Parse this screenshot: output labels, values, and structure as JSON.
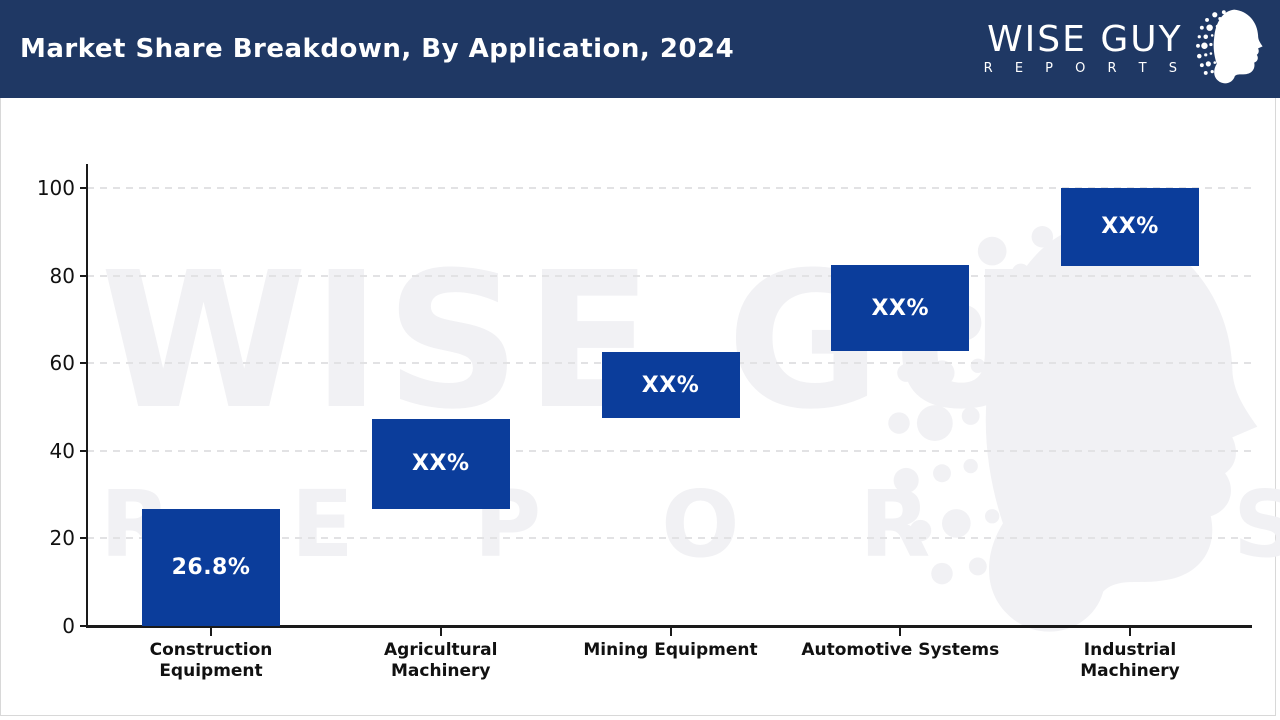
{
  "header": {
    "title": "Market Share Breakdown, By Application, 2024",
    "logo": {
      "line1": "WISE GUY",
      "line2": "R E P O R T S"
    }
  },
  "watermark": {
    "line1": "WISE GUY",
    "line2": "R E P O R T S"
  },
  "colors": {
    "header_bg": "#1f3864",
    "bar": "#0b3d9b",
    "grid": "#e2e2e4",
    "axis": "#1a1a1a",
    "watermark": "#f1f1f4",
    "panel_border": "#d8d8d8",
    "tick_label": "#111111",
    "bar_label": "#ffffff"
  },
  "chart_data": {
    "type": "bar",
    "subtype": "waterfall",
    "title": "Market Share Breakdown, By Application, 2024",
    "xlabel": "",
    "ylabel": "",
    "ylim": [
      0,
      100
    ],
    "yticks": [
      0,
      20,
      40,
      60,
      80,
      100
    ],
    "grid": "horizontal dashed, behind bars",
    "legend": "none",
    "categories": [
      "Construction\nEquipment",
      "Agricultural\nMachinery",
      "Mining Equipment",
      "Automotive Systems",
      "Industrial\nMachinery"
    ],
    "segments": [
      {
        "category": "Construction Equipment",
        "start": 0,
        "end": 26.8,
        "value_label": "26.8%"
      },
      {
        "category": "Agricultural Machinery",
        "start": 26.8,
        "end": 47.2,
        "value_label": "XX%"
      },
      {
        "category": "Mining Equipment",
        "start": 47.4,
        "end": 62.5,
        "value_label": "XX%"
      },
      {
        "category": "Automotive Systems",
        "start": 62.7,
        "end": 82.5,
        "value_label": "XX%"
      },
      {
        "category": "Industrial Machinery",
        "start": 82.3,
        "end": 100,
        "value_label": "XX%"
      }
    ]
  }
}
